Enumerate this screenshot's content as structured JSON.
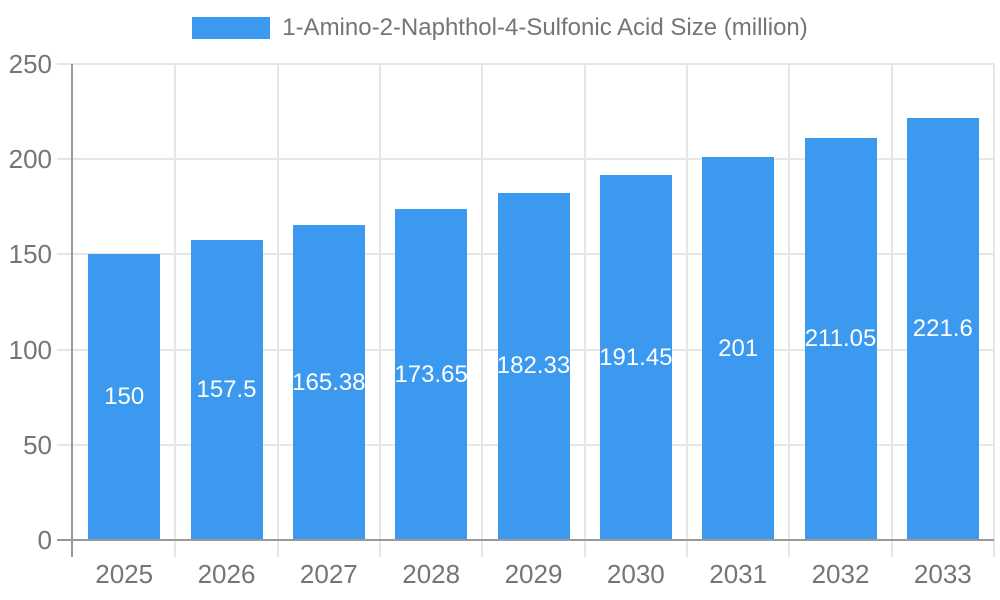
{
  "chart_data": {
    "type": "bar",
    "title": "1-Amino-2-Naphthol-4-Sulfonic Acid Size (million)",
    "legend": {
      "position": "top",
      "label": "1-Amino-2-Naphthol-4-Sulfonic Acid Size (million)"
    },
    "categories": [
      "2025",
      "2026",
      "2027",
      "2028",
      "2029",
      "2030",
      "2031",
      "2032",
      "2033"
    ],
    "series": [
      {
        "name": "1-Amino-2-Naphthol-4-Sulfonic Acid Size (million)",
        "values": [
          150,
          157.5,
          165.38,
          173.65,
          182.33,
          191.45,
          201,
          211.05,
          221.6
        ],
        "labels": [
          "150",
          "157.5",
          "165.38",
          "173.65",
          "182.33",
          "191.45",
          "201",
          "211.05",
          "221.6"
        ]
      }
    ],
    "xlabel": "",
    "ylabel": "",
    "ylim": [
      0,
      250
    ],
    "y_ticks": [
      0,
      50,
      100,
      150,
      200,
      250
    ],
    "grid": true,
    "colors": {
      "bar": "#3b99f0",
      "grid_line": "#e6e6e6",
      "axis_line": "#9a9a9a",
      "axis_text": "#757575",
      "value_label_text": "#ffffff",
      "background": "#ffffff"
    }
  }
}
